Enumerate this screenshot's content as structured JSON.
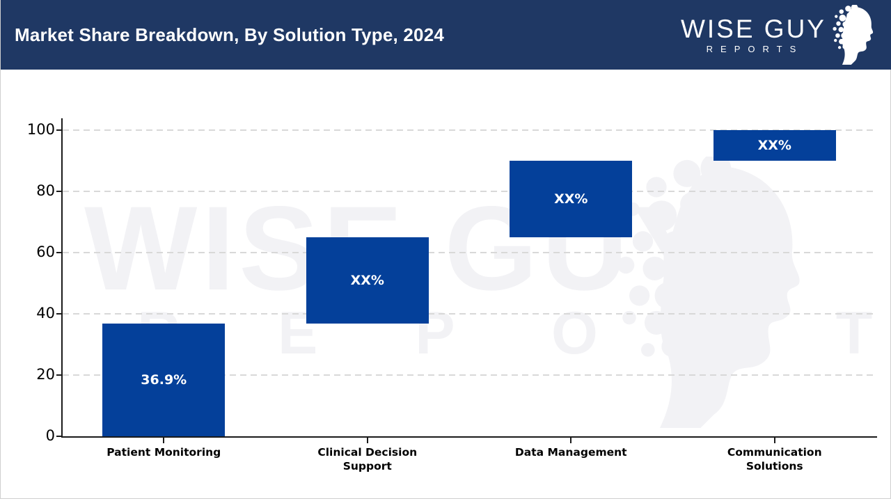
{
  "header": {
    "title": "Market Share Breakdown, By Solution Type, 2024",
    "logo": {
      "line1": "WISE GUY",
      "line2": "REPORTS",
      "icon": "dotted-head-profile"
    }
  },
  "watermark": {
    "line1": "WISE GUY",
    "line2": "REPORTS",
    "icon": "dotted-head-profile"
  },
  "colors": {
    "header_bg": "#1f3864",
    "bar_fill": "#04409a",
    "bar_label": "#ffffff",
    "gridline": "#d8d8d8",
    "axis": "#1a1a1a",
    "watermark": "#f2f2f5"
  },
  "chart_data": {
    "type": "bar",
    "subtype": "waterfall",
    "title": "Market Share Breakdown, By Solution Type, 2024",
    "categories": [
      "Patient Monitoring",
      "Clinical Decision Support",
      "Data Management",
      "Communication Solutions"
    ],
    "category_label_lines": [
      [
        "Patient Monitoring"
      ],
      [
        "Clinical Decision",
        "Support"
      ],
      [
        "Data Management"
      ],
      [
        "Communication",
        "Solutions"
      ]
    ],
    "segments": [
      {
        "category": "Patient Monitoring",
        "start": 0,
        "end": 36.9,
        "label": "36.9%"
      },
      {
        "category": "Clinical Decision Support",
        "start": 36.9,
        "end": 64.9,
        "label": "XX%"
      },
      {
        "category": "Data Management",
        "start": 64.9,
        "end": 90.0,
        "label": "XX%"
      },
      {
        "category": "Communication Solutions",
        "start": 90.0,
        "end": 100.0,
        "label": "XX%"
      }
    ],
    "xlabel": "",
    "ylabel": "",
    "ylim": [
      0,
      100
    ],
    "yticks": [
      0,
      20,
      40,
      60,
      80,
      100
    ],
    "grid": "horizontal-dashed",
    "legend": "none",
    "bar_color": "#04409a",
    "value_label_color": "#ffffff"
  }
}
